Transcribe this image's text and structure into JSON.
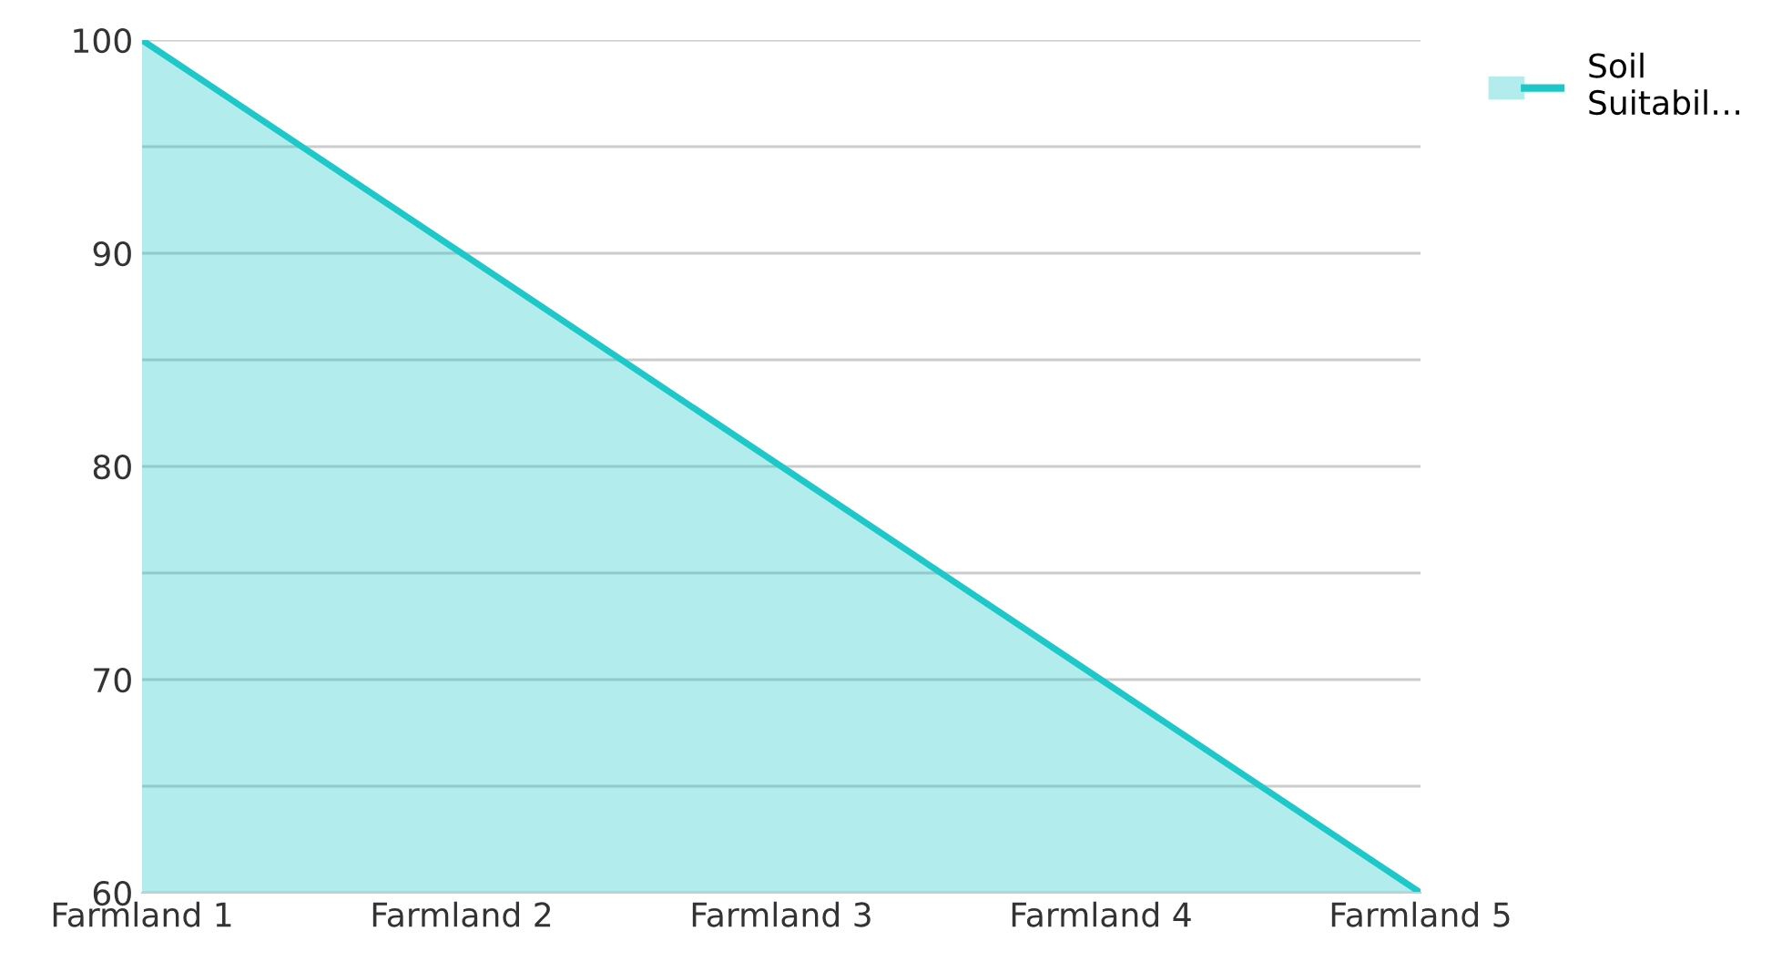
{
  "chart_data": {
    "type": "area",
    "categories": [
      "Farmland 1",
      "Farmland 2",
      "Farmland 3",
      "Farmland 4",
      "Farmland 5"
    ],
    "series": [
      {
        "name": "Soil Suitabil…",
        "color": "#1ec8c8",
        "values": [
          100,
          90,
          80,
          70,
          60
        ]
      }
    ],
    "ylim": [
      60,
      100
    ],
    "yticks": [
      60,
      {
        "value": 65,
        "label": null
      },
      70,
      {
        "value": 75,
        "label": null
      },
      80,
      {
        "value": 85,
        "label": null
      },
      90,
      {
        "value": 95,
        "label": null
      },
      100
    ],
    "grid": "y",
    "legend": "top right",
    "marker": "none",
    "line_style": "solid"
  }
}
